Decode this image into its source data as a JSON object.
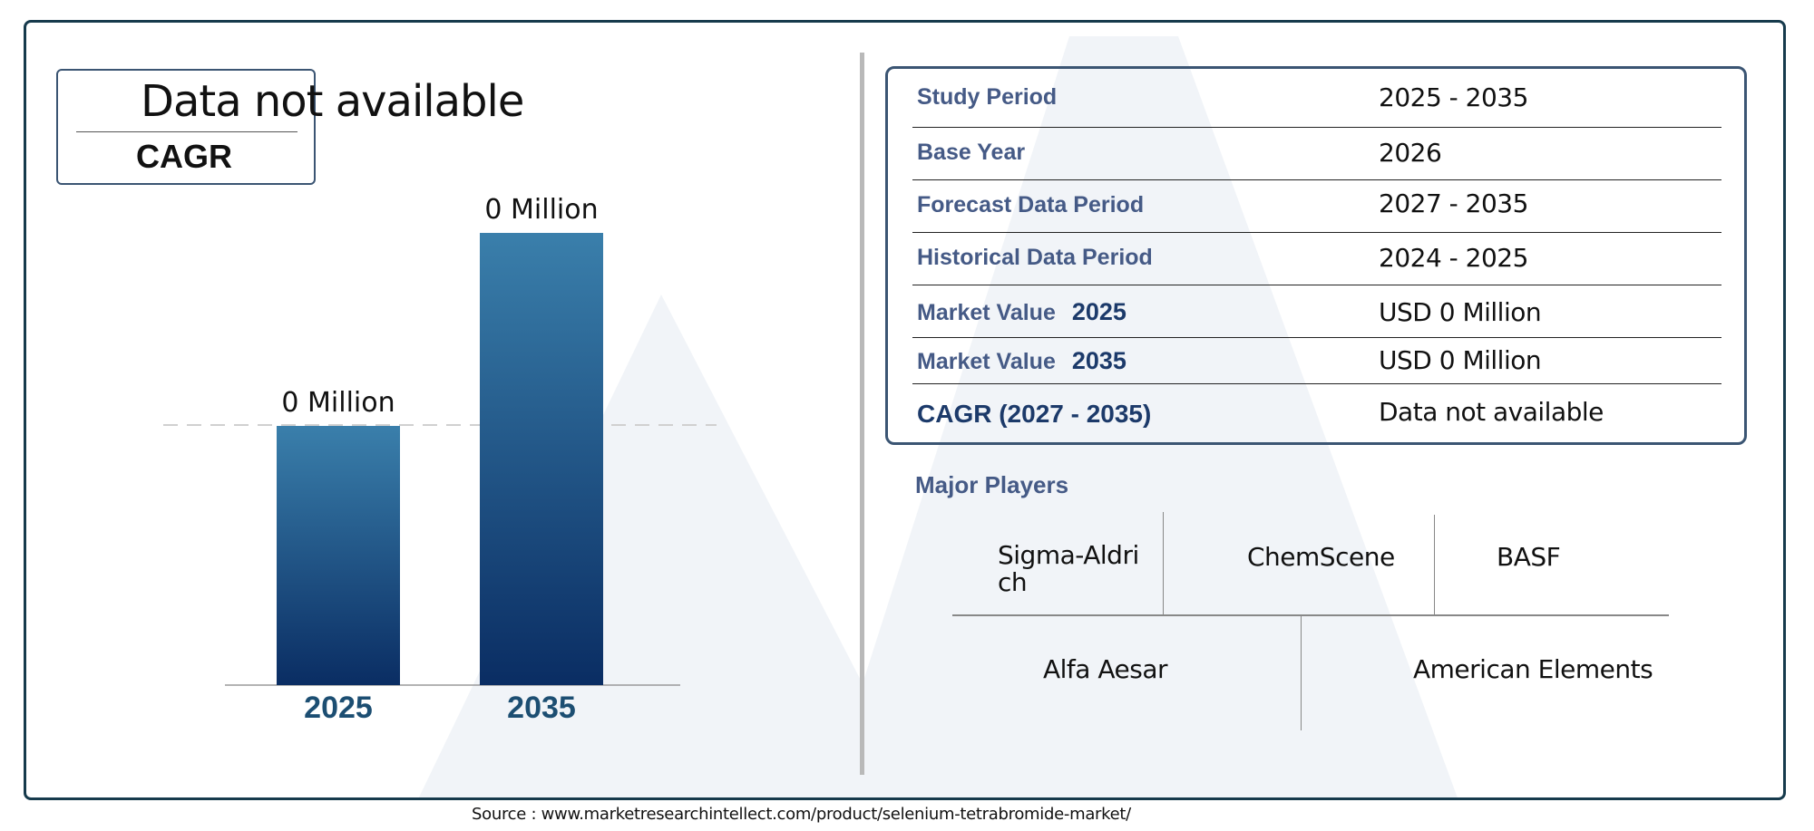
{
  "summary": {
    "cagr_value": "Data not available",
    "cagr_label": "CAGR"
  },
  "chart_data": {
    "type": "bar",
    "categories": [
      "2025",
      "2035"
    ],
    "values": [
      0,
      0
    ],
    "data_labels": [
      "0 Million",
      "0 Million"
    ],
    "title": "",
    "xlabel": "",
    "ylabel": "",
    "colors": {
      "bar_top": "#3a7fab",
      "bar_bottom": "#0a2d63",
      "category_label": "#1c4e72",
      "reference_line": "#d0d0d0"
    }
  },
  "info_table": [
    {
      "label": "Study Period",
      "value": "2025 - 2035"
    },
    {
      "label": "Base Year",
      "value": "2026"
    },
    {
      "label": "Forecast Data Period",
      "value": "2027 - 2035"
    },
    {
      "label": "Historical Data Period",
      "value": "2024 - 2025"
    },
    {
      "label": "Market Value",
      "year": "2025",
      "value": "USD 0 Million"
    },
    {
      "label": "Market Value",
      "year": "2035",
      "value": "USD 0 Million"
    },
    {
      "label": "CAGR (2027 - 2035)",
      "value": "Data not available"
    }
  ],
  "players": {
    "title": "Major Players",
    "row1": [
      "Sigma-Aldri\nch",
      "ChemScene",
      "BASF"
    ],
    "row2": [
      "Alfa Aesar",
      "American Elements"
    ]
  },
  "source": "Source : www.marketresearchintellect.com/product/selenium-tetrabromide-market/"
}
